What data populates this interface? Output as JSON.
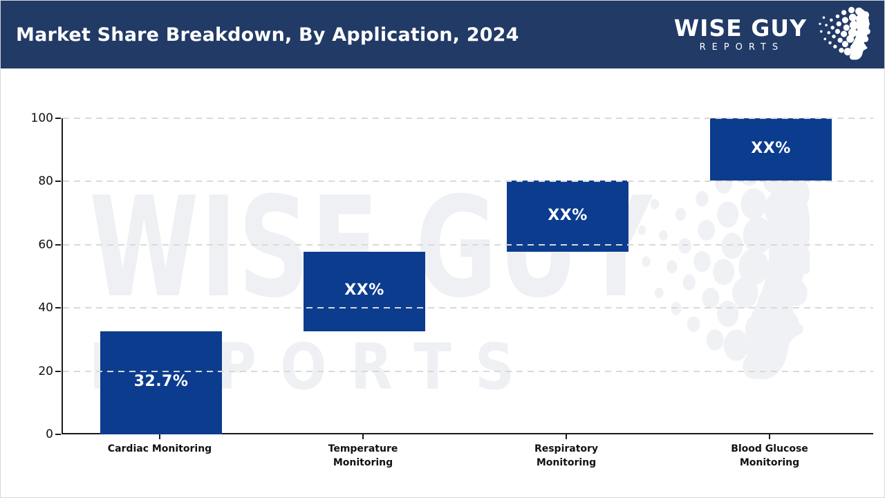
{
  "header": {
    "title": "Market Share Breakdown, By Application, 2024",
    "bg_color": "#213a66",
    "logo": {
      "title": "WISE GUY",
      "subtitle": "REPORTS"
    }
  },
  "watermark": {
    "line1": "WISE GUY",
    "line2": "REPORTS"
  },
  "chart_data": {
    "type": "bar",
    "subtype": "waterfall-floating-bars",
    "title": "Market Share Breakdown, By Application, 2024",
    "categories": [
      "Cardiac Monitoring",
      "Temperature Monitoring",
      "Respiratory Monitoring",
      "Blood Glucose Monitoring"
    ],
    "category_lines": [
      [
        "Cardiac Monitoring"
      ],
      [
        "Temperature",
        "Monitoring"
      ],
      [
        "Respiratory",
        "Monitoring"
      ],
      [
        "Blood Glucose",
        "Monitoring"
      ]
    ],
    "segments": [
      {
        "start": 0,
        "end": 32.7,
        "label": "32.7%"
      },
      {
        "start": 32.7,
        "end": 57.7,
        "label": "XX%"
      },
      {
        "start": 57.7,
        "end": 80.2,
        "label": "XX%"
      },
      {
        "start": 80.2,
        "end": 100,
        "label": "XX%"
      }
    ],
    "yticks": [
      0,
      20,
      40,
      60,
      80,
      100
    ],
    "ylim": [
      0,
      100
    ],
    "grid": "dashed-horizontal",
    "legend": "none",
    "bar_color": "#0c3c8e",
    "label_color": "#ffffff",
    "axis_color": "#1a1a1a",
    "grid_color": "#d9d9d9"
  }
}
